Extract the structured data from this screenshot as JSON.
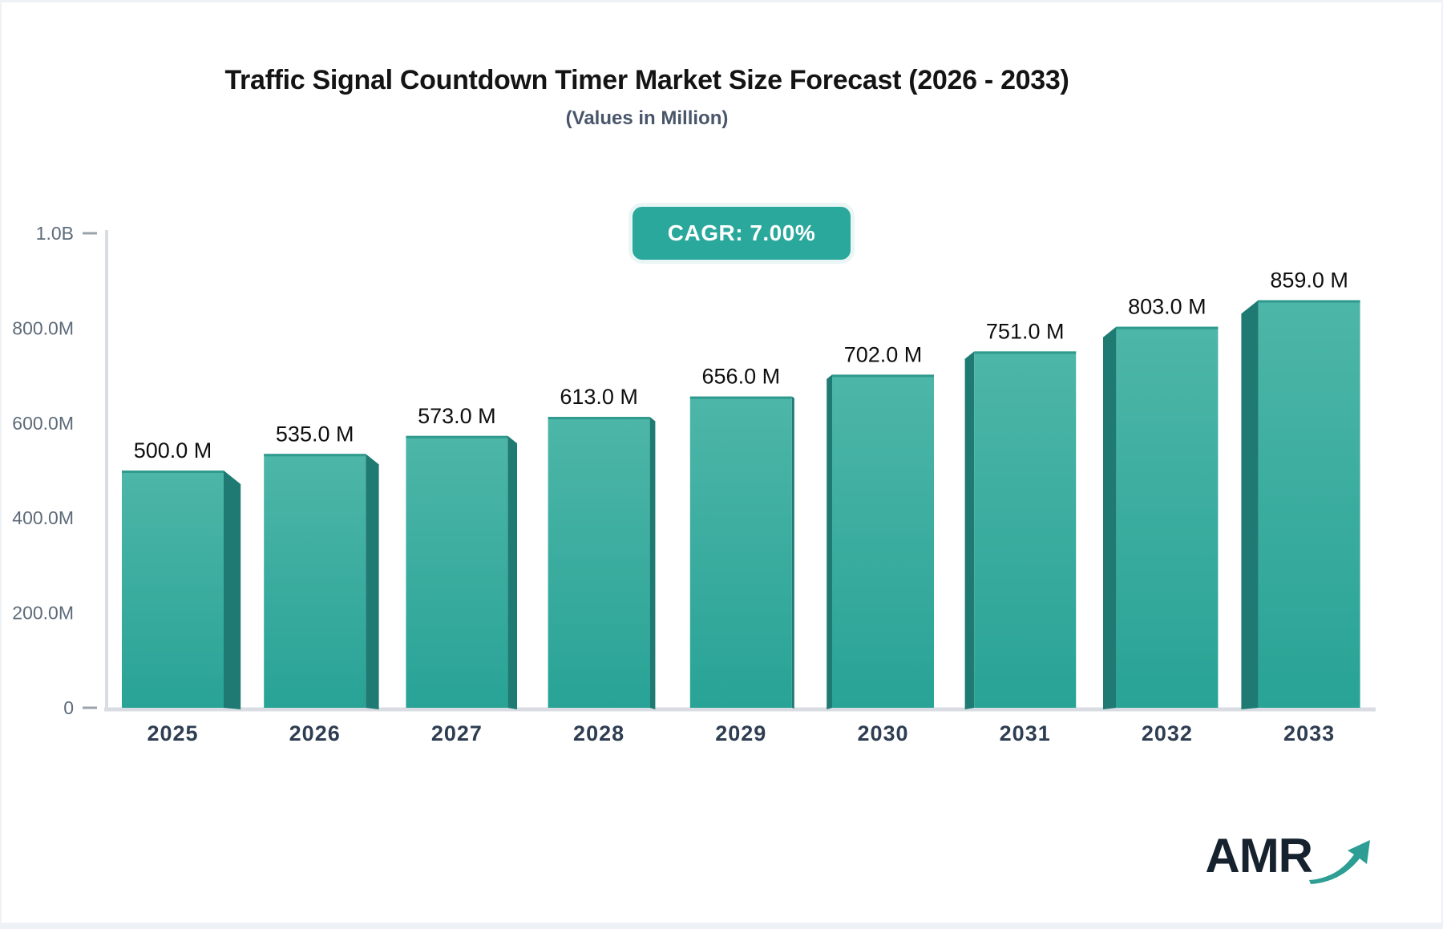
{
  "header": {
    "title": "Traffic Signal Countdown Timer Market Size Forecast (2026 - 2033)",
    "subtitle": "(Values in Million)"
  },
  "badge": {
    "label": "CAGR: 7.00%",
    "bg": "#2aa89b",
    "text_color": "#ffffff"
  },
  "chart_data": {
    "type": "bar",
    "title": "Traffic Signal Countdown Timer Market Size Forecast (2026 - 2033)",
    "subtitle": "(Values in Million)",
    "categories": [
      "2025",
      "2026",
      "2027",
      "2028",
      "2029",
      "2030",
      "2031",
      "2032",
      "2033"
    ],
    "values": [
      500.0,
      535.0,
      573.0,
      613.0,
      656.0,
      702.0,
      751.0,
      803.0,
      859.0
    ],
    "value_labels": [
      "500.0 M",
      "535.0 M",
      "573.0 M",
      "613.0 M",
      "656.0 M",
      "702.0 M",
      "751.0 M",
      "803.0 M",
      "859.0 M"
    ],
    "unit": "Million",
    "xlabel": "",
    "ylabel": "",
    "ylim": [
      0,
      1000
    ],
    "ytick_values": [
      0,
      200,
      400,
      600,
      800,
      1000
    ],
    "ytick_labels": [
      "0",
      "200.0M",
      "400.0M",
      "600.0M",
      "800.0M",
      "1.0B"
    ],
    "grid": false,
    "legend": false,
    "style": {
      "effect": "3d-perspective-center-vanishing-point",
      "bar_face_top": "#4db6a8",
      "bar_face_bottom": "#28a396",
      "bar_side": "#1e7a72",
      "bar_top_edge": "#2f9a8d",
      "axis_color": "#d9dde3",
      "tick_dash_color": "#9aa3ad",
      "ytick_color": "#5d6b7a",
      "xtick_color": "#2e3d52",
      "value_label_color": "#0e0e0e"
    }
  },
  "logo": {
    "text": "AMR",
    "text_color": "#16222e",
    "arrow_color": "#2d9e94"
  }
}
